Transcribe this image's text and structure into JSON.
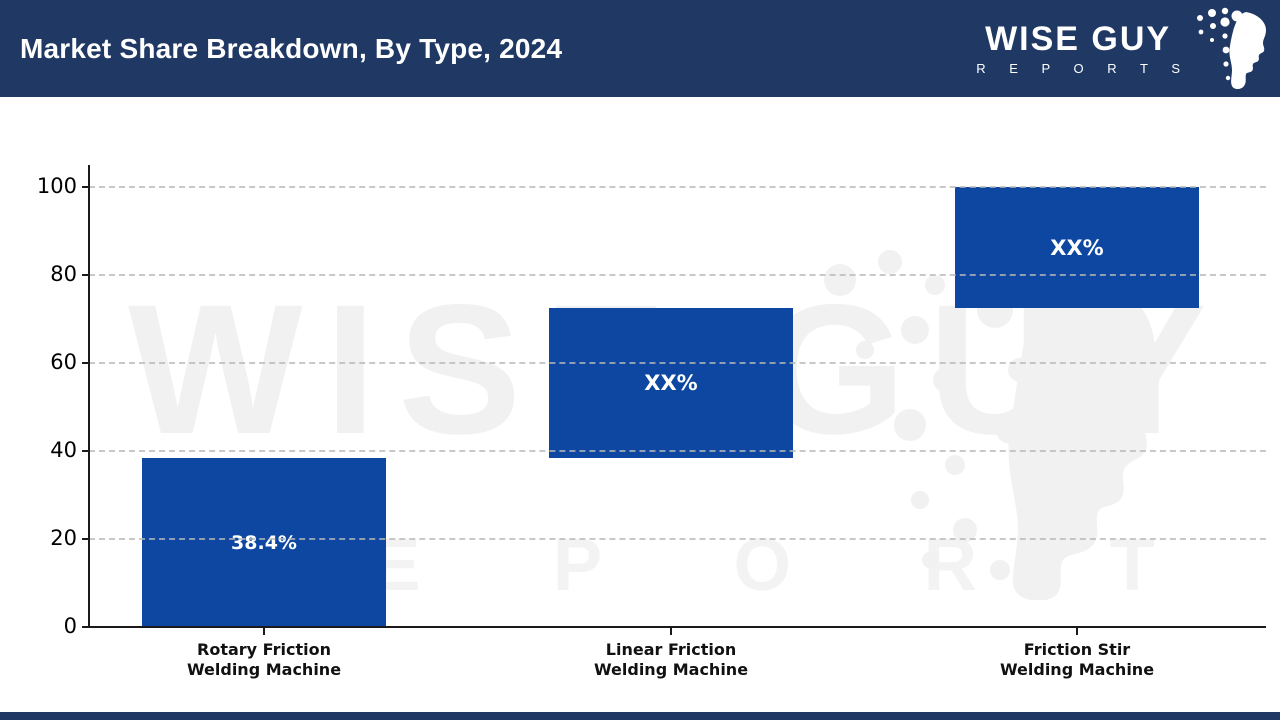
{
  "header": {
    "title": "Market Share Breakdown, By Type, 2024",
    "logo": {
      "main": "WISE GUY",
      "sub": "R E P O R T S"
    }
  },
  "watermark": {
    "main": "WISE GUY",
    "sub": "R E P O R T S"
  },
  "colors": {
    "header_bg": "#1f3864",
    "footer_bg": "#1f3864",
    "bar_fill": "#0d47a1",
    "bar_label_text": "#ffffff",
    "gridline": "#b9b9b9",
    "axis": "#1a1a1a",
    "tick_label_text": "#000000",
    "watermark_text": "#f1f1f1"
  },
  "chart_data": {
    "type": "bar",
    "subtype": "stepped-waterfall",
    "title": "Market Share Breakdown, By Type, 2024",
    "xlabel": "",
    "ylabel": "",
    "ylim": [
      0,
      100
    ],
    "yticks": [
      0,
      20,
      40,
      60,
      80,
      100
    ],
    "grid": "horizontal dashed, drawn over bars",
    "legend": "none",
    "categories": [
      [
        "Rotary Friction",
        "Welding Machine"
      ],
      [
        "Linear Friction",
        "Welding Machine"
      ],
      [
        "Friction Stir",
        "Welding Machine"
      ]
    ],
    "segments": [
      {
        "category": "Rotary Friction Welding Machine",
        "start": 0,
        "end": 38.4,
        "value": 38.4,
        "label": "38.4%"
      },
      {
        "category": "Linear Friction Welding Machine",
        "start": 38.4,
        "end": 72.6,
        "value": 34.2,
        "label": "XX%"
      },
      {
        "category": "Friction Stir Welding Machine",
        "start": 72.6,
        "end": 100,
        "value": 27.4,
        "label": "XX%"
      }
    ]
  }
}
